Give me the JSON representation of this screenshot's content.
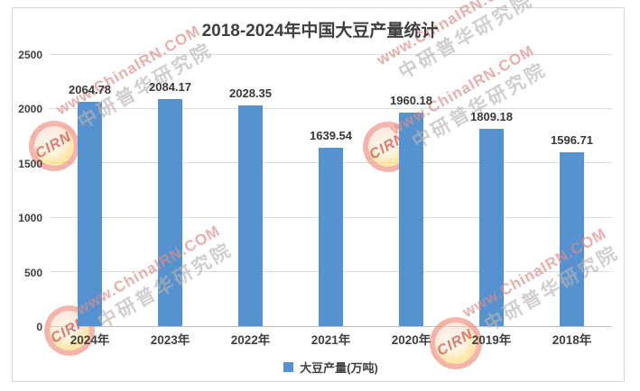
{
  "chart": {
    "title": "2018-2024年中国大豆产量统计",
    "legend": "大豆产量(万吨)"
  },
  "chart_data": {
    "type": "bar",
    "title": "2018-2024年中国大豆产量统计",
    "categories": [
      "2024年",
      "2023年",
      "2022年",
      "2021年",
      "2020年",
      "2019年",
      "2018年"
    ],
    "values": [
      2064.78,
      2084.17,
      2028.35,
      1639.54,
      1960.18,
      1809.18,
      1596.71
    ],
    "series_name": "大豆产量(万吨)",
    "data_labels": [
      "2064.78",
      "2084.17",
      "2028.35",
      "1639.54",
      "1960.18",
      "1809.18",
      "1596.71"
    ],
    "ylim": [
      0,
      2500
    ],
    "yticks": [
      0,
      500,
      1000,
      1500,
      2000,
      2500
    ],
    "xlabel": "",
    "ylabel": "",
    "grid": true,
    "legend_position": "bottom",
    "bar_color": "#5592cf"
  },
  "watermark": {
    "line1": "www.ChinaIRN.COM",
    "line2": "中研普华研究院",
    "logo_text": "CIRN"
  },
  "colors": {
    "bar": "#5592cf",
    "title_text": "#3f3f3f",
    "axis_text": "#404040",
    "gridline": "#dcdcdc",
    "axis_line": "#bfbfbf",
    "frame_border": "#d9d9d9",
    "watermark_pink": "#de8d89",
    "watermark_gray": "#bab4b2",
    "watermark_logo_red": "#cd3732"
  }
}
